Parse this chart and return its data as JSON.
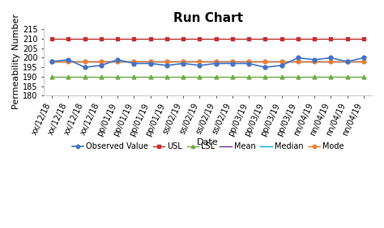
{
  "title": "Run Chart",
  "xlabel": "Date",
  "ylabel": "Permeability Number",
  "ylim": [
    180,
    216
  ],
  "yticks": [
    180,
    185,
    190,
    195,
    200,
    205,
    210,
    215
  ],
  "x_labels": [
    "xx/12/18",
    "xx/12/18",
    "xx/12/18",
    "xx/12/18",
    "pp/01/19",
    "pp/01/19",
    "pp/01/19",
    "pp/01/19",
    "ss/02/19",
    "ss/02/19",
    "ss/02/19",
    "ss/02/19",
    "pp/03/19",
    "pp/03/19",
    "pp/03/19",
    "pp/03/19",
    "nn/04/19",
    "nn/04/19",
    "nn/04/19",
    "nn/04/19"
  ],
  "observed": [
    198,
    199,
    195,
    196,
    199,
    197,
    197,
    196,
    197,
    196,
    197,
    197,
    197,
    195,
    196,
    200,
    199,
    200,
    198,
    200
  ],
  "usl": [
    210,
    210,
    210,
    210,
    210,
    210,
    210,
    210,
    210,
    210,
    210,
    210,
    210,
    210,
    210,
    210,
    210,
    210,
    210,
    210
  ],
  "lsl": [
    190,
    190,
    190,
    190,
    190,
    190,
    190,
    190,
    190,
    190,
    190,
    190,
    190,
    190,
    190,
    190,
    190,
    190,
    190,
    190
  ],
  "mean": [
    198,
    198,
    198,
    198,
    198,
    198,
    198,
    198,
    198,
    198,
    198,
    198,
    198,
    198,
    198,
    198,
    198,
    198,
    198,
    198
  ],
  "median": [
    198.2,
    198.2,
    198.2,
    198.2,
    198.2,
    198.2,
    198.2,
    198.2,
    198.2,
    198.2,
    198.2,
    198.2,
    198.2,
    198.2,
    198.2,
    198.2,
    198.2,
    198.2,
    198.2,
    198.2
  ],
  "mode": [
    198,
    198,
    198,
    198,
    198,
    198,
    198,
    198,
    198,
    198,
    198,
    198,
    198,
    198,
    198,
    198,
    198,
    198,
    198,
    198
  ],
  "color_observed": "#4472C4",
  "color_usl": "#C0312F",
  "color_lsl": "#70AD47",
  "color_mean": "#7030A0",
  "color_median": "#00B0F0",
  "color_mode": "#ED7D31",
  "bg_color": "#FFFFFF",
  "legend_labels": [
    "Observed Value",
    "USL",
    "LSL",
    "Mean",
    "Median",
    "Mode"
  ],
  "title_fontsize": 11,
  "axis_label_fontsize": 8,
  "tick_fontsize": 7,
  "legend_fontsize": 7
}
